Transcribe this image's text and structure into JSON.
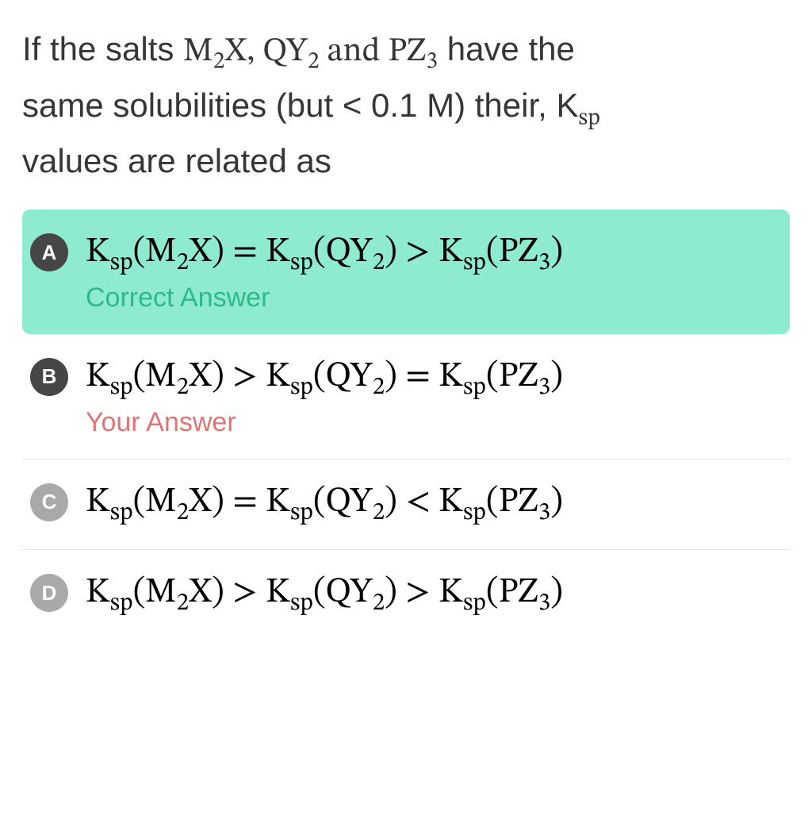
{
  "question": {
    "line1_pre": "If the salts ",
    "salt1": "M",
    "salt1_sub": "2",
    "salt1_post": "X, QY",
    "salt2_sub": "2",
    "line1_mid": " and PZ",
    "salt3_sub": "3",
    "line1_post": " have the",
    "line2_pre": "same solubilities (but < 0.1 M) their, K",
    "ksp_sub": "sp",
    "line3": "values are related as"
  },
  "options": [
    {
      "letter": "A",
      "badge_bg": "#464646",
      "row_bg": "#8eebcf",
      "formula": "Kₛₚ(M₂X) = Kₛₚ(QY₂) > Kₛₚ(PZ₃)",
      "label": "Correct Answer",
      "label_color": "#2db98b"
    },
    {
      "letter": "B",
      "badge_bg": "#464646",
      "row_bg": "#ffffff",
      "formula": "Kₛₚ(M₂X) > Kₛₚ(QY₂) = Kₛₚ(PZ₃)",
      "label": "Your Answer",
      "label_color": "#e27373"
    },
    {
      "letter": "C",
      "badge_bg": "#a9a9a9",
      "row_bg": "#ffffff",
      "formula": "Kₛₚ(M₂X) = Kₛₚ(QY₂) < Kₛₚ(PZ₃)",
      "label": "",
      "label_color": ""
    },
    {
      "letter": "D",
      "badge_bg": "#a9a9a9",
      "row_bg": "#ffffff",
      "formula": "Kₛₚ(M₂X) > Kₛₚ(QY₂) > Kₛₚ(PZ₃)",
      "label": "",
      "label_color": ""
    }
  ],
  "styling": {
    "page_bg": "#ffffff",
    "question_color": "#363636",
    "question_fontsize": 42,
    "formula_fontsize": 44,
    "formula_color": "#000000",
    "status_fontsize": 34,
    "divider_color": "#e5e5e5",
    "badge_text_color": "#ffffff",
    "badge_size": 48
  }
}
